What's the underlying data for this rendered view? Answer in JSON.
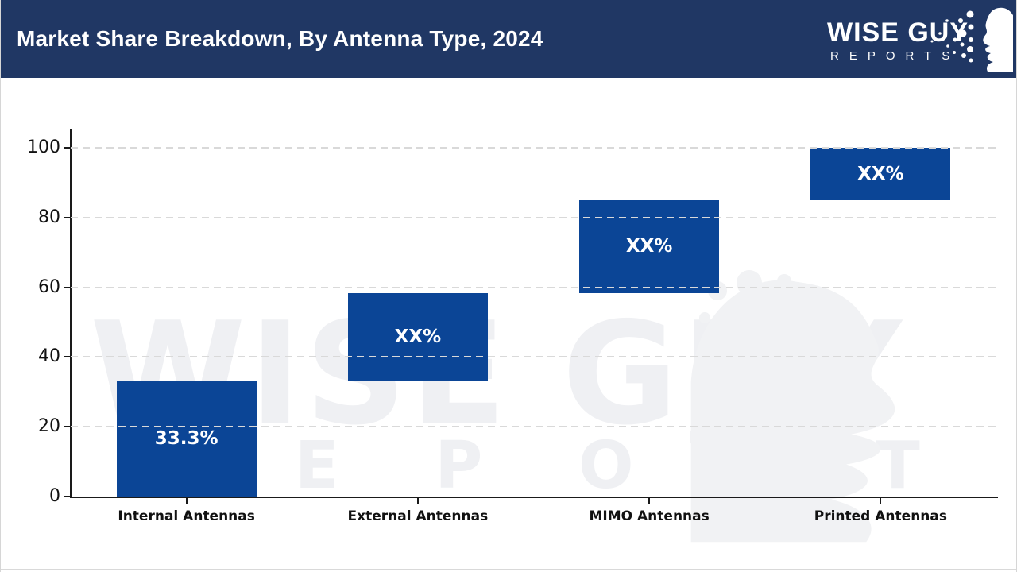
{
  "header": {
    "title": "Market Share Breakdown, By Antenna Type, 2024",
    "logo": {
      "line1": "WISE GUY",
      "line2": "REPORTS"
    }
  },
  "watermark": {
    "line1": "WISE GUY",
    "line2": "R E P O R T S"
  },
  "colors": {
    "header_bg": "#203764",
    "bar": "#0b4596",
    "grid": "#d9d9d9",
    "axis": "#1a1a1a",
    "bar_label": "#ffffff",
    "watermark": "#eff0f3"
  },
  "chart_data": {
    "type": "bar",
    "subtype": "waterfall",
    "title": "Market Share Breakdown, By Antenna Type, 2024",
    "categories": [
      "Internal Antennas",
      "External Antennas",
      "MIMO Antennas",
      "Printed Antennas"
    ],
    "segments": [
      {
        "category": "Internal Antennas",
        "start": 0,
        "end": 33.3,
        "label": "33.3%"
      },
      {
        "category": "External Antennas",
        "start": 33.3,
        "end": 58.3,
        "label": "XX%"
      },
      {
        "category": "MIMO Antennas",
        "start": 58.3,
        "end": 85.0,
        "label": "XX%"
      },
      {
        "category": "Printed Antennas",
        "start": 85.0,
        "end": 100.0,
        "label": "XX%"
      }
    ],
    "yticks": [
      0,
      20,
      40,
      60,
      80,
      100
    ],
    "ylim": [
      0,
      100
    ],
    "xlabel": "",
    "ylabel": "",
    "grid": "dashed-horizontal",
    "legend": "none"
  }
}
